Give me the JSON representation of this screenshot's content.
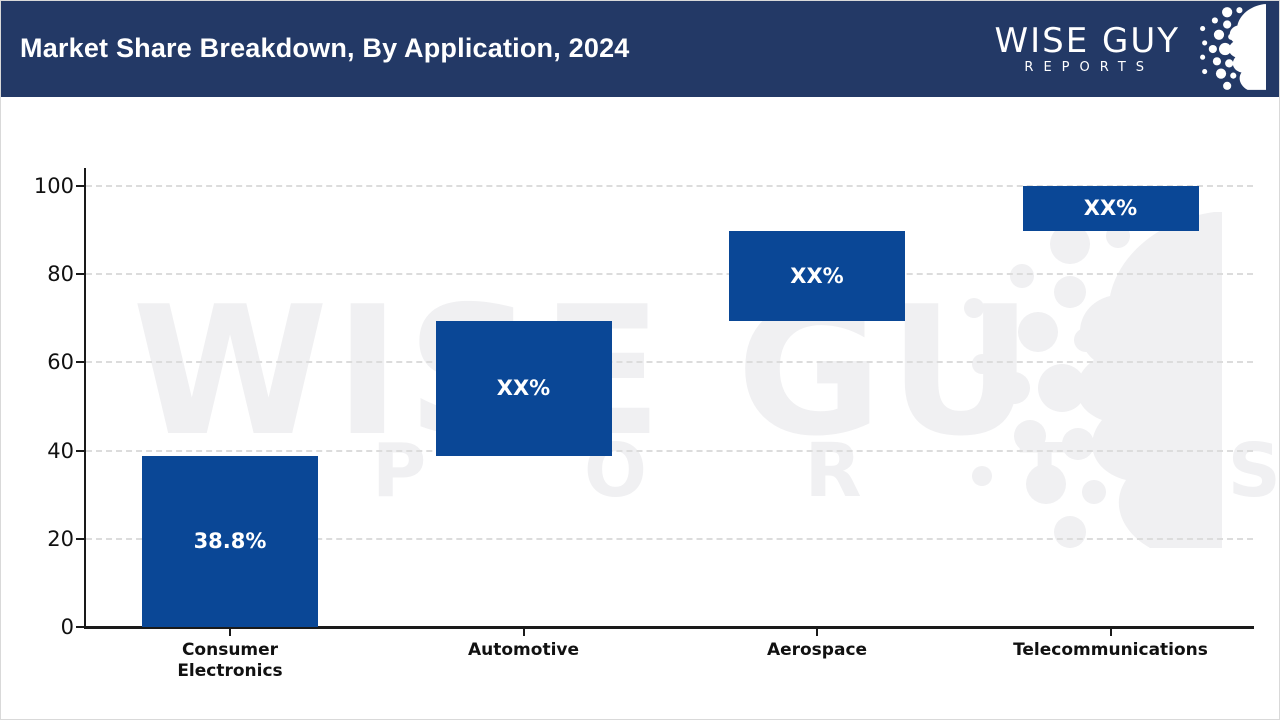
{
  "header": {
    "title": "Market Share Breakdown, By Application, 2024",
    "logo": {
      "line1": "WISE GUY",
      "line2": "REPORTS"
    }
  },
  "watermark": {
    "line1": "WISE GU",
    "line2": "P O R T S"
  },
  "chart_data": {
    "type": "bar",
    "subtype": "waterfall",
    "title": "Market Share Breakdown, By Application, 2024",
    "categories": [
      "Consumer Electronics",
      "Automotive",
      "Aerospace",
      "Telecommunications"
    ],
    "category_lines": [
      [
        "Consumer",
        "Electronics"
      ],
      [
        "Automotive"
      ],
      [
        "Aerospace"
      ],
      [
        "Telecommunications"
      ]
    ],
    "segments": [
      {
        "category": "Consumer Electronics",
        "start": 0,
        "end": 38.8,
        "label": "38.8%"
      },
      {
        "category": "Automotive",
        "start": 38.8,
        "end": 69.4,
        "label": "XX%"
      },
      {
        "category": "Aerospace",
        "start": 69.4,
        "end": 89.8,
        "label": "XX%"
      },
      {
        "category": "Telecommunications",
        "start": 89.8,
        "end": 100,
        "label": "XX%"
      }
    ],
    "yticks": [
      0,
      20,
      40,
      60,
      80,
      100
    ],
    "ylim": [
      0,
      104
    ],
    "xlabel": "",
    "ylabel": "",
    "grid": "horizontal-dashed",
    "legend": "none",
    "bar_color": "#0a4796",
    "bar_label_color": "#ffffff",
    "header_color": "#233966",
    "gridline_color": "#dcdcdc",
    "watermark_color": "#f0f0f2"
  }
}
